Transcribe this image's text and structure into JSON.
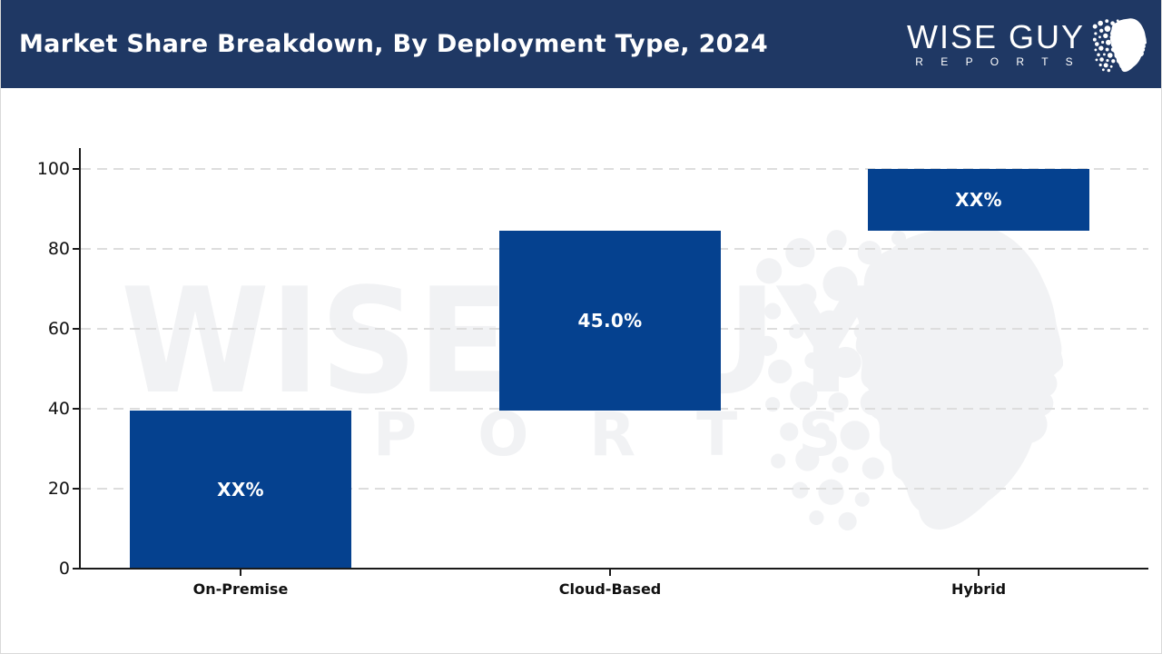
{
  "header": {
    "title": "Market Share Breakdown, By Deployment Type, 2024",
    "logo": {
      "line1": "WISE GUY",
      "line2": "R E P O R T S"
    }
  },
  "watermark": {
    "line1": "WISE GUY",
    "line2": "R E P O R T S"
  },
  "chart_data": {
    "type": "bar",
    "subtype": "floating-segment-columns (stacked market-share breakdown)",
    "title": "Market Share Breakdown, By Deployment Type, 2024",
    "categories": [
      "On-Premise",
      "Cloud-Based",
      "Hybrid"
    ],
    "values": [
      39.5,
      45.0,
      15.5
    ],
    "segments": [
      {
        "category": "On-Premise",
        "from": 0,
        "to": 39.5,
        "value_label": "XX%"
      },
      {
        "category": "Cloud-Based",
        "from": 39.5,
        "to": 84.5,
        "value_label": "45.0%"
      },
      {
        "category": "Hybrid",
        "from": 84.5,
        "to": 100,
        "value_label": "XX%"
      }
    ],
    "xlabel": "",
    "ylabel": "",
    "ylim": [
      0,
      100
    ],
    "yticks": [
      0,
      20,
      40,
      60,
      80,
      100
    ],
    "grid": "horizontal-dashed",
    "legend": "none"
  },
  "colors": {
    "header_bg": "#1f3864",
    "bar": "#05418f",
    "bar_label": "#ffffff",
    "gridline": "#dddddd",
    "axis": "#1a1a1a",
    "tick_label": "#111111",
    "watermark": "#f1f2f4"
  }
}
